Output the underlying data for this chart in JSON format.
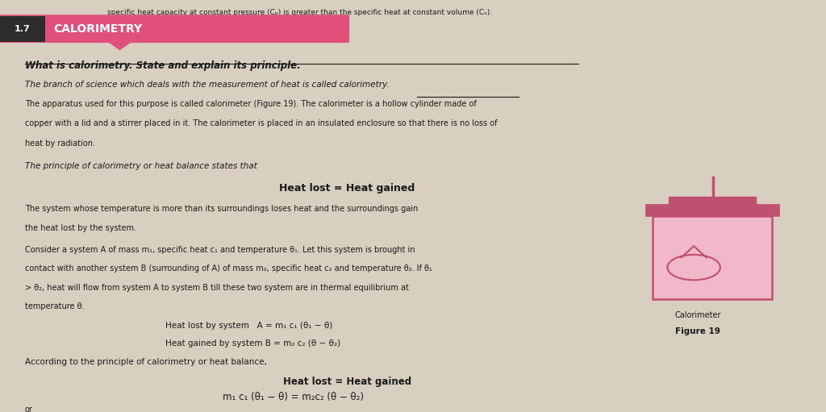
{
  "bg_color": "#d8cfc0",
  "header_bar_color": "#e0507a",
  "header_text": "CALORIMETRY",
  "header_number": "1.7",
  "top_text": "specific heat capacity at constant pressure (Cₚ) is greater than the specific heat at constant volume (Cᵥ).",
  "question_text": "What is calorimetry. State and explain its principle.",
  "para1_italic": "The branch of science which deals with the measurement of heat is called calorimetry.",
  "para3_italic": "The principle of calorimetry or heat balance states that",
  "heat_eq": "Heat lost = Heat gained",
  "eq1": "Heat lost by system   A = m₁ c₁ (θ₁ − θ)",
  "eq2": "Heat gained by system B = m₂ c₂ (θ − θ₂)",
  "para6": "According to the principle of calorimetry or heat balance,",
  "heat_eq2": "Heat lost = Heat gained",
  "eq3": "m₁ c₁ (θ₁ − θ) = m₂c₂ (θ − θ₂)",
  "footer_left": "or",
  "calorimeter_label": "Calorimeter",
  "figure_label": "Figure 19",
  "text_color": "#1a1a1a",
  "calorimeter_body_color": "#f0b8c8",
  "calorimeter_border_color": "#c05070",
  "calorimeter_cap_color": "#c05070",
  "lines2": [
    "The apparatus used for this purpose is called calorimeter (Figure 19). The calorimeter is a hollow cylinder made of",
    "copper with a lid and a stirrer placed in it. The calorimeter is placed in an insulated enclosure so that there is no loss of",
    "heat by radiation."
  ],
  "lines4": [
    "The system whose temperature is more than its surroundings loses heat and the surroundings gain",
    "the heat lost by the system."
  ],
  "lines5": [
    "Consider a system A of mass m₁, specific heat c₁ and temperature θ₁. Let this system is brought in",
    "contact with another system B (surrounding of A) of mass m₂, specific heat c₂ and temperature θ₂. If θ₁",
    "> θ₂, heat will flow from system A to system B till these two system are in thermal equilibrium at",
    "temperature θ."
  ]
}
